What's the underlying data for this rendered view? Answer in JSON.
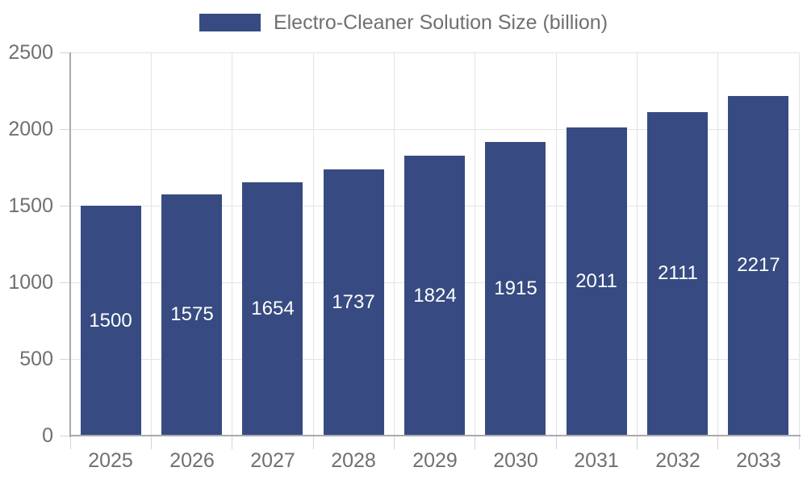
{
  "chart_data": {
    "type": "bar",
    "title": "",
    "legend": "Electro-Cleaner Solution Size (billion)",
    "legend_position": "top-center",
    "categories": [
      "2025",
      "2026",
      "2027",
      "2028",
      "2029",
      "2030",
      "2031",
      "2032",
      "2033"
    ],
    "values": [
      1500,
      1575,
      1654,
      1737,
      1824,
      1915,
      2011,
      2111,
      2217
    ],
    "xlabel": "",
    "ylabel": "",
    "ylim": [
      0,
      2500
    ],
    "yticks": [
      0,
      500,
      1000,
      1500,
      2000,
      2500
    ],
    "grid": true,
    "bar_value_labels": true
  },
  "colors": {
    "bar": "#374B82",
    "axis_label": "#707070",
    "legend_text": "#707070",
    "bar_value_text": "#FFFFFF",
    "gridline": "#E4E4E8",
    "tick": "#D4D4DA",
    "axis_line": "#A9A9AF",
    "background": "#FFFFFF"
  }
}
